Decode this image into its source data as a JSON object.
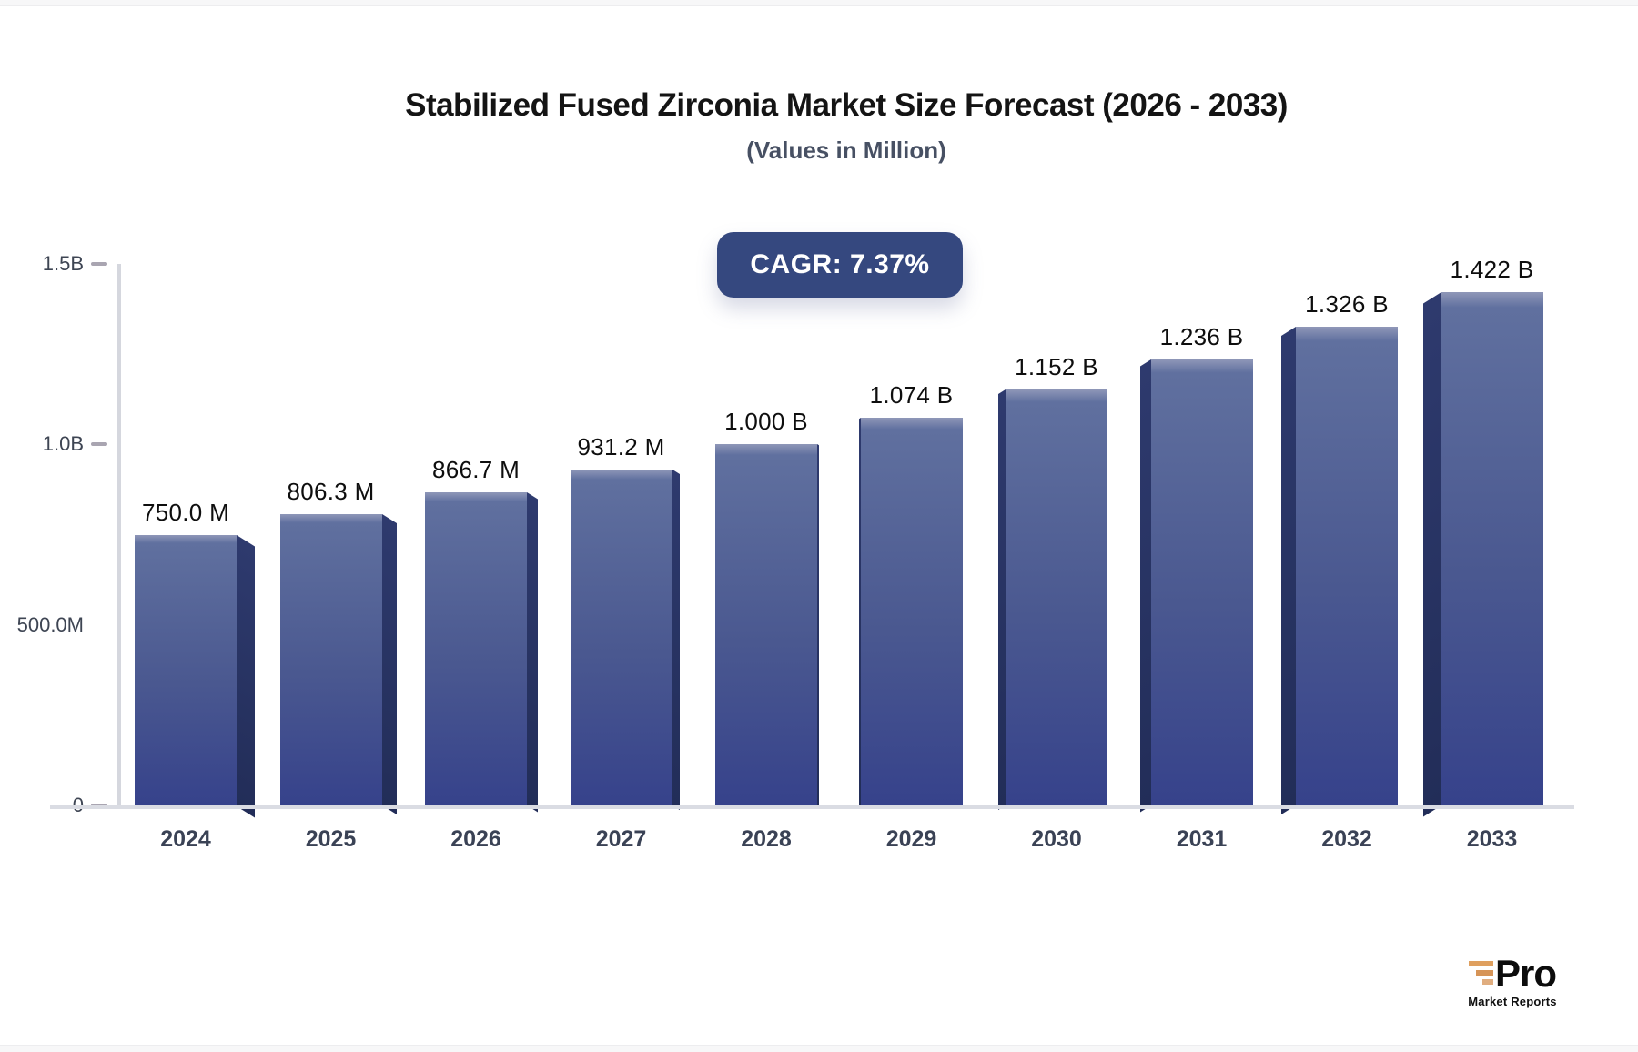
{
  "title": "Stabilized Fused Zirconia Market Size Forecast (2026 - 2033)",
  "subtitle": "(Values in Million)",
  "cagr_badge": "CAGR: 7.37%",
  "colors": {
    "badge_bg": "#35487f",
    "bar_front_top": "#60709f",
    "bar_front_bottom": "#36428b",
    "bar_side": "#283464",
    "axis_line": "#d5d7de",
    "tick_dash": "#a9a5b1",
    "year_label": "#3a4255",
    "logo_orange": "#dfa05f"
  },
  "chart_data": {
    "type": "bar",
    "title": "Stabilized Fused Zirconia Market Size Forecast (2026 - 2033)",
    "subtitle": "(Values in Million)",
    "xlabel": "",
    "ylabel": "",
    "categories": [
      "2024",
      "2025",
      "2026",
      "2027",
      "2028",
      "2029",
      "2030",
      "2031",
      "2032",
      "2033"
    ],
    "values": [
      750.0,
      806.3,
      866.7,
      931.2,
      1000,
      1074,
      1152,
      1236,
      1326,
      1422
    ],
    "unit": "millions",
    "bar_labels": [
      "750.0 M",
      "806.3 M",
      "866.7 M",
      "931.2 M",
      "1.000 B",
      "1.074 B",
      "1.152 B",
      "1.236 B",
      "1.326 B",
      "1.422 B"
    ],
    "ylim": [
      0,
      1500
    ],
    "y_ticks": [
      {
        "label": "0",
        "value": 0,
        "dash": true
      },
      {
        "label": "500.0M",
        "value": 500,
        "dash": false
      },
      {
        "label": "1.0B",
        "value": 1000,
        "dash": true
      },
      {
        "label": "1.5B",
        "value": 1500,
        "dash": true
      }
    ],
    "grid": false,
    "legend": "none",
    "cagr": "7.37%"
  },
  "logo": {
    "brand": "Pro",
    "tagline": "Market Reports"
  }
}
